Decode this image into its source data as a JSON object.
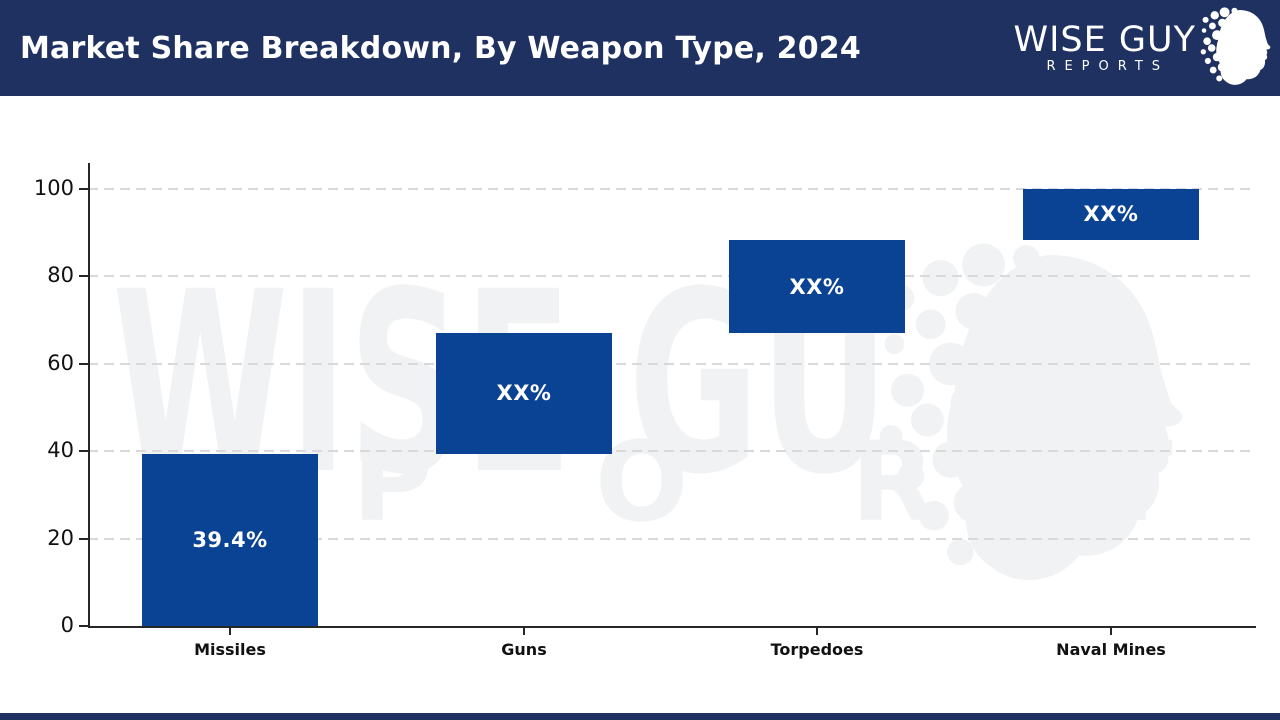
{
  "header": {
    "title": "Market Share Breakdown, By Weapon Type, 2024",
    "logo": {
      "wordmark": "WISE GUY",
      "subtext": "REPORTS"
    }
  },
  "watermark": {
    "line1": "WISE GU",
    "line2": "P O R T S"
  },
  "chart_data": {
    "type": "bar",
    "variant": "waterfall",
    "title": "Market Share Breakdown, By Weapon Type, 2024",
    "categories": [
      "Missiles",
      "Guns",
      "Torpedoes",
      "Naval Mines"
    ],
    "segments": [
      {
        "category": "Missiles",
        "start": 0,
        "end": 39.4,
        "label": "39.4%"
      },
      {
        "category": "Guns",
        "start": 39.4,
        "end": 67.0,
        "label": "XX%"
      },
      {
        "category": "Torpedoes",
        "start": 67.0,
        "end": 88.2,
        "label": "XX%"
      },
      {
        "category": "Naval Mines",
        "start": 88.2,
        "end": 100,
        "label": "XX%"
      }
    ],
    "yticks": [
      0,
      20,
      40,
      60,
      80,
      100
    ],
    "ylim": [
      0,
      105
    ],
    "xlabel": "",
    "ylabel": "",
    "grid": "horizontal-dashed",
    "legend": "none",
    "bar_color": "#0a4294",
    "bar_label_color": "#ffffff",
    "axis_color": "#262626",
    "header_color": "#1f3160"
  }
}
